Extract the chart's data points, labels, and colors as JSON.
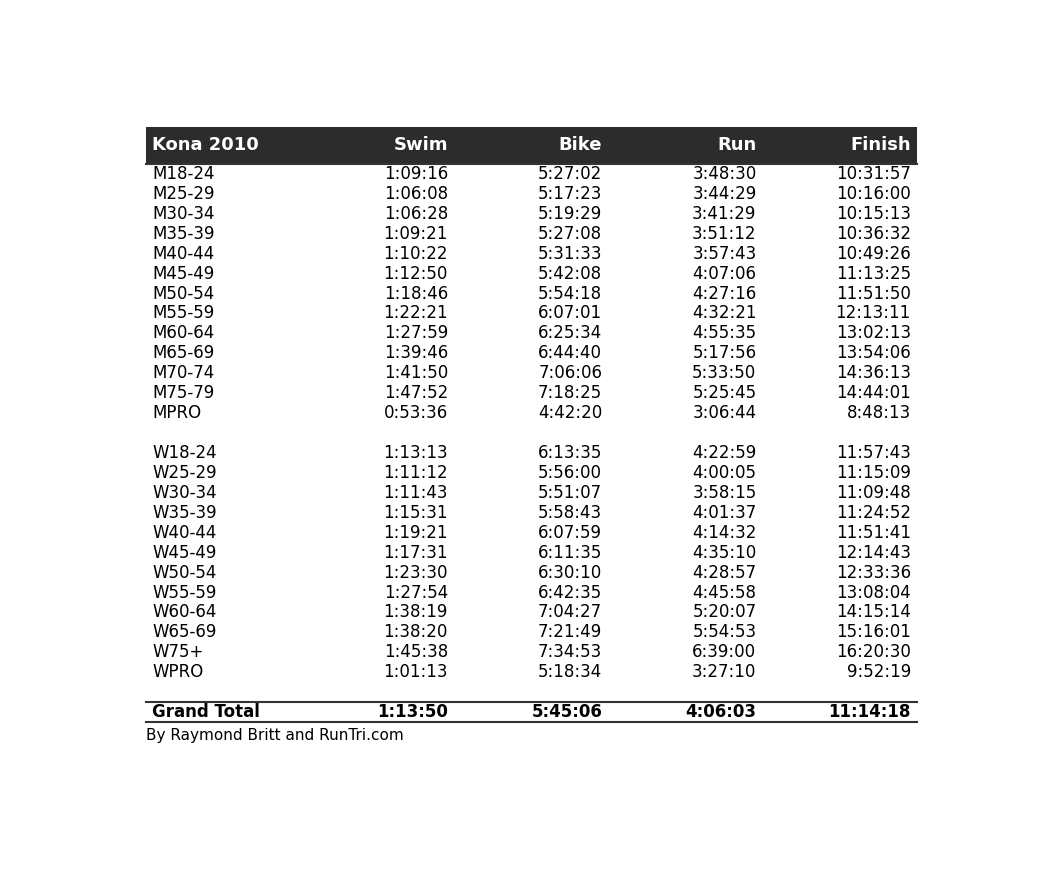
{
  "title": "Kona 2010",
  "columns": [
    "Kona 2010",
    "Swim",
    "Bike",
    "Run",
    "Finish"
  ],
  "rows": [
    [
      "M18-24",
      "1:09:16",
      "5:27:02",
      "3:48:30",
      "10:31:57"
    ],
    [
      "M25-29",
      "1:06:08",
      "5:17:23",
      "3:44:29",
      "10:16:00"
    ],
    [
      "M30-34",
      "1:06:28",
      "5:19:29",
      "3:41:29",
      "10:15:13"
    ],
    [
      "M35-39",
      "1:09:21",
      "5:27:08",
      "3:51:12",
      "10:36:32"
    ],
    [
      "M40-44",
      "1:10:22",
      "5:31:33",
      "3:57:43",
      "10:49:26"
    ],
    [
      "M45-49",
      "1:12:50",
      "5:42:08",
      "4:07:06",
      "11:13:25"
    ],
    [
      "M50-54",
      "1:18:46",
      "5:54:18",
      "4:27:16",
      "11:51:50"
    ],
    [
      "M55-59",
      "1:22:21",
      "6:07:01",
      "4:32:21",
      "12:13:11"
    ],
    [
      "M60-64",
      "1:27:59",
      "6:25:34",
      "4:55:35",
      "13:02:13"
    ],
    [
      "M65-69",
      "1:39:46",
      "6:44:40",
      "5:17:56",
      "13:54:06"
    ],
    [
      "M70-74",
      "1:41:50",
      "7:06:06",
      "5:33:50",
      "14:36:13"
    ],
    [
      "M75-79",
      "1:47:52",
      "7:18:25",
      "5:25:45",
      "14:44:01"
    ],
    [
      "MPRO",
      "0:53:36",
      "4:42:20",
      "3:06:44",
      "8:48:13"
    ],
    [
      "",
      "",
      "",
      "",
      ""
    ],
    [
      "W18-24",
      "1:13:13",
      "6:13:35",
      "4:22:59",
      "11:57:43"
    ],
    [
      "W25-29",
      "1:11:12",
      "5:56:00",
      "4:00:05",
      "11:15:09"
    ],
    [
      "W30-34",
      "1:11:43",
      "5:51:07",
      "3:58:15",
      "11:09:48"
    ],
    [
      "W35-39",
      "1:15:31",
      "5:58:43",
      "4:01:37",
      "11:24:52"
    ],
    [
      "W40-44",
      "1:19:21",
      "6:07:59",
      "4:14:32",
      "11:51:41"
    ],
    [
      "W45-49",
      "1:17:31",
      "6:11:35",
      "4:35:10",
      "12:14:43"
    ],
    [
      "W50-54",
      "1:23:30",
      "6:30:10",
      "4:28:57",
      "12:33:36"
    ],
    [
      "W55-59",
      "1:27:54",
      "6:42:35",
      "4:45:58",
      "13:08:04"
    ],
    [
      "W60-64",
      "1:38:19",
      "7:04:27",
      "5:20:07",
      "14:15:14"
    ],
    [
      "W65-69",
      "1:38:20",
      "7:21:49",
      "5:54:53",
      "15:16:01"
    ],
    [
      "W75+",
      "1:45:38",
      "7:34:53",
      "6:39:00",
      "16:20:30"
    ],
    [
      "WPRO",
      "1:01:13",
      "5:18:34",
      "3:27:10",
      "9:52:19"
    ],
    [
      "",
      "",
      "",
      "",
      ""
    ],
    [
      "Grand Total",
      "1:13:50",
      "5:45:06",
      "4:06:03",
      "11:14:18"
    ]
  ],
  "header_bg": "#2c2c2c",
  "header_fg": "#ffffff",
  "body_bg": "#ffffff",
  "body_fg": "#000000",
  "footer_text": "By Raymond Britt and RunTri.com",
  "header_fontsize": 13,
  "body_fontsize": 12,
  "footer_fontsize": 11,
  "line_color": "#333333"
}
